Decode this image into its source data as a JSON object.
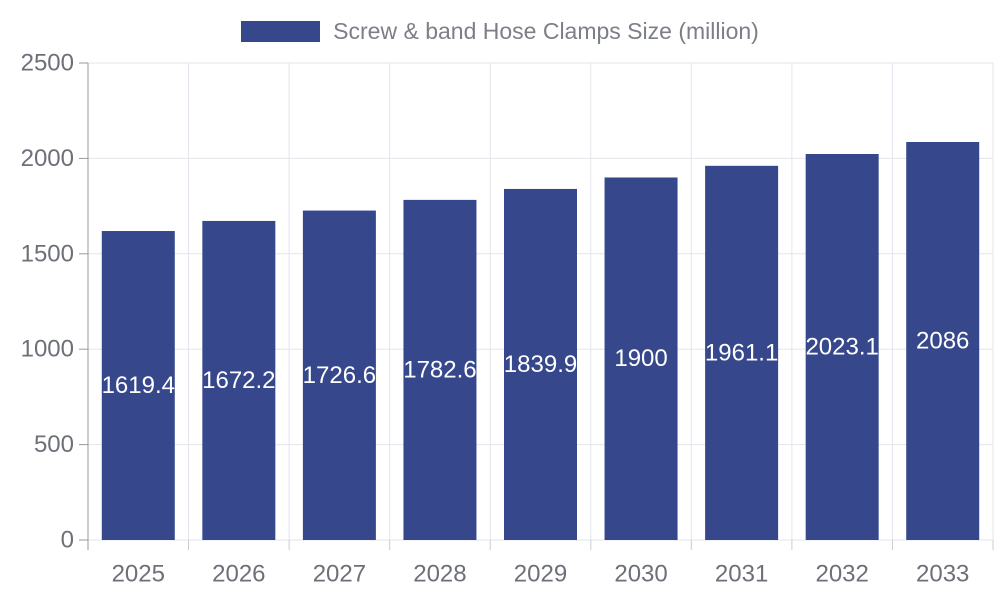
{
  "legend": {
    "label": "Screw & band Hose Clamps Size (million)",
    "swatch_color": "#36488b"
  },
  "chart_data": {
    "type": "bar",
    "title": "",
    "categories": [
      "2025",
      "2026",
      "2027",
      "2028",
      "2029",
      "2030",
      "2031",
      "2032",
      "2033"
    ],
    "series": [
      {
        "name": "Screw & band Hose Clamps Size (million)",
        "values": [
          1619.4,
          1672.2,
          1726.6,
          1782.6,
          1839.9,
          1900,
          1961.1,
          2023.1,
          2086
        ],
        "value_labels": [
          "1619.4",
          "1672.2",
          "1726.6",
          "1782.6",
          "1839.9",
          "1900",
          "1961.1",
          "2023.1",
          "2086"
        ],
        "color": "#36488b"
      }
    ],
    "xlabel": "",
    "ylabel": "",
    "ylim": [
      0,
      2500
    ],
    "yticks": [
      0,
      500,
      1000,
      1500,
      2000,
      2500
    ],
    "grid": true,
    "legend_position": "top",
    "value_label_color": "#ffffff",
    "axis_text_color": "#6e7079",
    "grid_color": "#e2e5ec",
    "axis_line_color": "#999999",
    "tick_color": "#c9ccd3"
  }
}
